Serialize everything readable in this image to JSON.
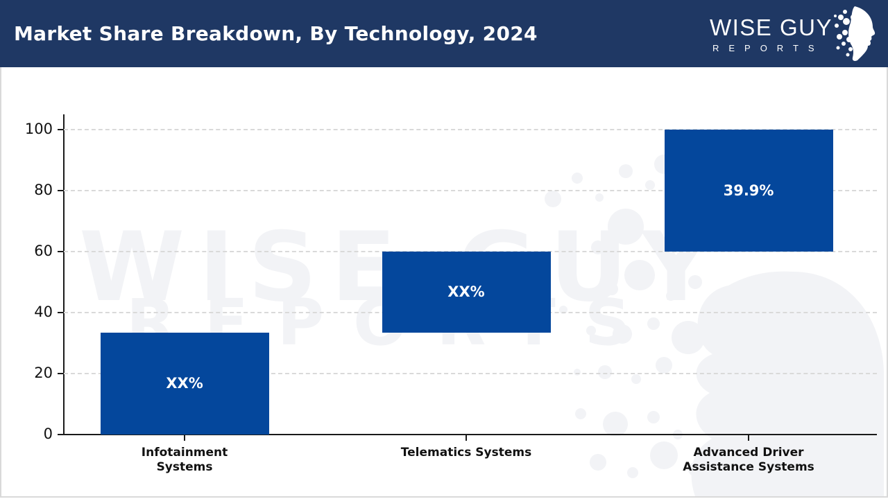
{
  "header": {
    "title": "Market Share Breakdown, By Technology, 2024",
    "logo": {
      "line1": "WISE GUY",
      "line2": "REPORTS"
    }
  },
  "watermark": {
    "line1": "WISE GUY",
    "line2": "REPORTS"
  },
  "chart_data": {
    "type": "bar",
    "variant": "waterfall",
    "title": "Market Share Breakdown, By Technology, 2024",
    "categories": [
      "Infotainment Systems",
      "Telematics Systems",
      "Advanced Driver Assistance Systems"
    ],
    "category_lines": [
      [
        "Infotainment",
        "Systems"
      ],
      [
        "Telematics Systems"
      ],
      [
        "Advanced Driver",
        "Assistance Systems"
      ]
    ],
    "segments": [
      {
        "category": "Infotainment Systems",
        "start": 0,
        "end": 33.5,
        "label": "XX%"
      },
      {
        "category": "Telematics Systems",
        "start": 33.5,
        "end": 60.1,
        "label": "XX%"
      },
      {
        "category": "Advanced Driver Assistance Systems",
        "start": 60.1,
        "end": 100,
        "label": "39.9%"
      }
    ],
    "yticks": [
      0,
      20,
      40,
      60,
      80,
      100
    ],
    "ylim": [
      0,
      105
    ],
    "xlabel": "",
    "ylabel": "",
    "grid": "horizontal-dashed",
    "legend": "none",
    "bar_color": "#04479c",
    "bar_label_color": "#ffffff"
  },
  "colors": {
    "header_bg": "#1f3864",
    "grid": "#d9d9d9",
    "axis": "#1a1a1a",
    "tick_text": "#111111",
    "watermark": "#f2f3f6",
    "title_text": "#ffffff"
  }
}
